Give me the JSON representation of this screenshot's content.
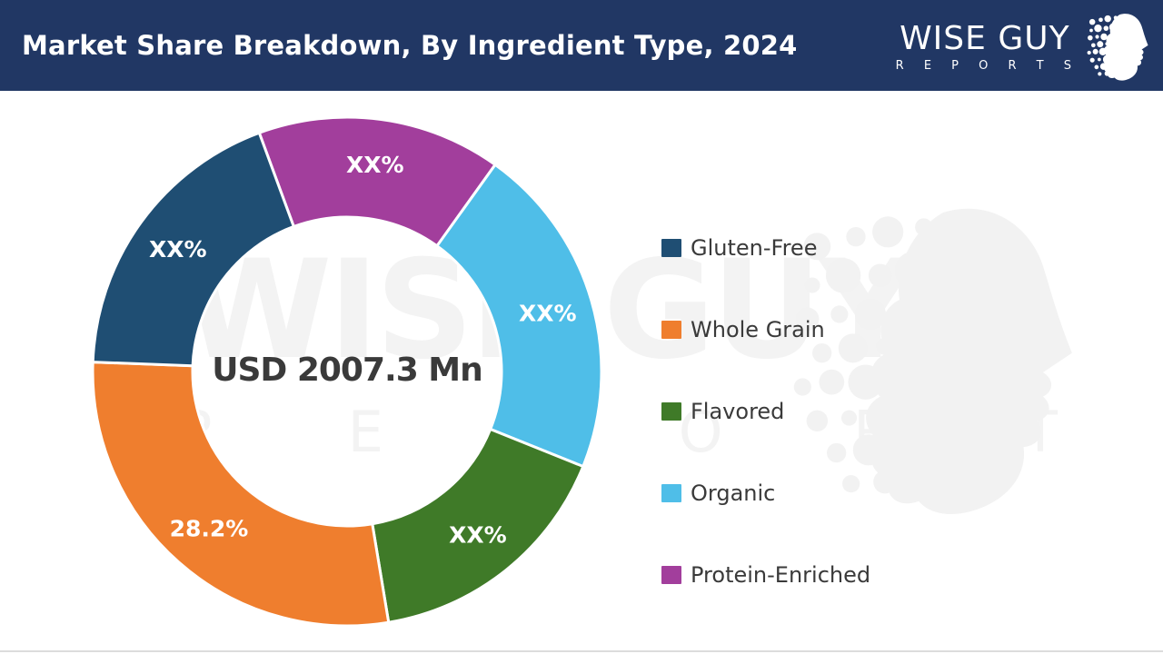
{
  "header": {
    "title": "Market Share Breakdown, By Ingredient Type, 2024",
    "logo": {
      "brand": "WISE GUY",
      "sub": "R E P O R T S"
    }
  },
  "watermark": {
    "brand": "WISE GUY",
    "sub": "R E P O R T S"
  },
  "chart_data": {
    "type": "pie",
    "subtype": "donut",
    "title": "Market Share Breakdown, By Ingredient Type, 2024",
    "center_label": "USD 2007.3 Mn",
    "units": "percent of market share",
    "start_angle_deg": -20.2,
    "direction": "clockwise",
    "segments": [
      {
        "name": "Protein-Enriched",
        "value_pct": 15.5,
        "display_label": "XX%",
        "color": "#A23E9C"
      },
      {
        "name": "Organic",
        "value_pct": 21.2,
        "display_label": "XX%",
        "color": "#4FBEE8"
      },
      {
        "name": "Flavored",
        "value_pct": 16.3,
        "display_label": "XX%",
        "color": "#3F7A28"
      },
      {
        "name": "Whole Grain",
        "value_pct": 28.2,
        "display_label": "28.2%",
        "color": "#EF7E2E"
      },
      {
        "name": "Gluten-Free",
        "value_pct": 18.8,
        "display_label": "XX%",
        "color": "#1F4E73"
      }
    ],
    "legend": {
      "position": "right",
      "items": [
        {
          "label": "Gluten-Free",
          "color": "#1F4E73"
        },
        {
          "label": "Whole Grain",
          "color": "#EF7E2E"
        },
        {
          "label": "Flavored",
          "color": "#3F7A28"
        },
        {
          "label": "Organic",
          "color": "#4FBEE8"
        },
        {
          "label": "Protein-Enriched",
          "color": "#A23E9C"
        }
      ]
    }
  },
  "colors": {
    "header_bg": "#213764",
    "text_dark": "#3A3A3A",
    "watermark": "#F2F2F2",
    "bottom_rule": "#DCDCDC"
  }
}
